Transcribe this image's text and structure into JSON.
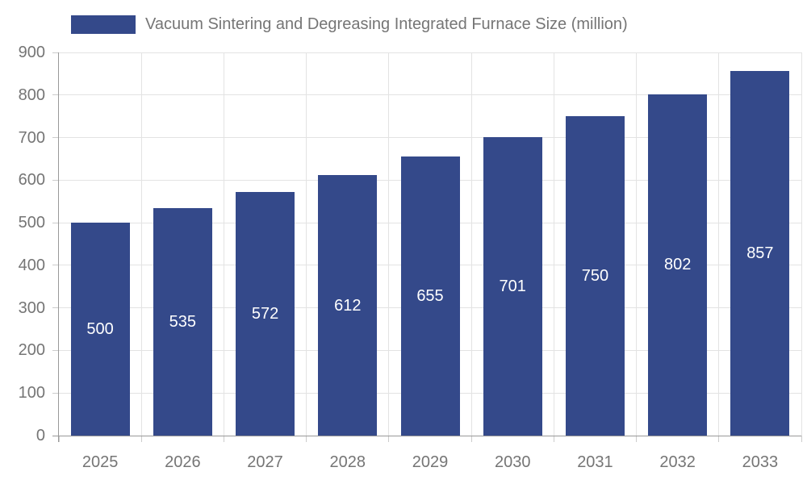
{
  "legend": {
    "label": "Vacuum Sintering and Degreasing Integrated Furnace Size (million)"
  },
  "chart_data": {
    "type": "bar",
    "title": "",
    "legend_entries": [
      "Vacuum Sintering and Degreasing Integrated Furnace Size (million)"
    ],
    "legend_position": "top",
    "categories": [
      "2025",
      "2026",
      "2027",
      "2028",
      "2029",
      "2030",
      "2031",
      "2032",
      "2033"
    ],
    "values": [
      500,
      535,
      572,
      612,
      655,
      701,
      750,
      802,
      857
    ],
    "value_labels": "inside-center",
    "xlabel": "",
    "ylabel": "",
    "ylim": [
      0,
      900
    ],
    "yticks": [
      0,
      100,
      200,
      300,
      400,
      500,
      600,
      700,
      800,
      900
    ],
    "grid": "horizontal-and-vertical",
    "colors": {
      "bar": "#34498a",
      "grid_line": "#e3e3e3",
      "axis_line": "#999999",
      "tick_mark": "#cccccc",
      "tick_text": "#757575",
      "value_label_text": "#ffffff",
      "background": "#ffffff"
    }
  }
}
